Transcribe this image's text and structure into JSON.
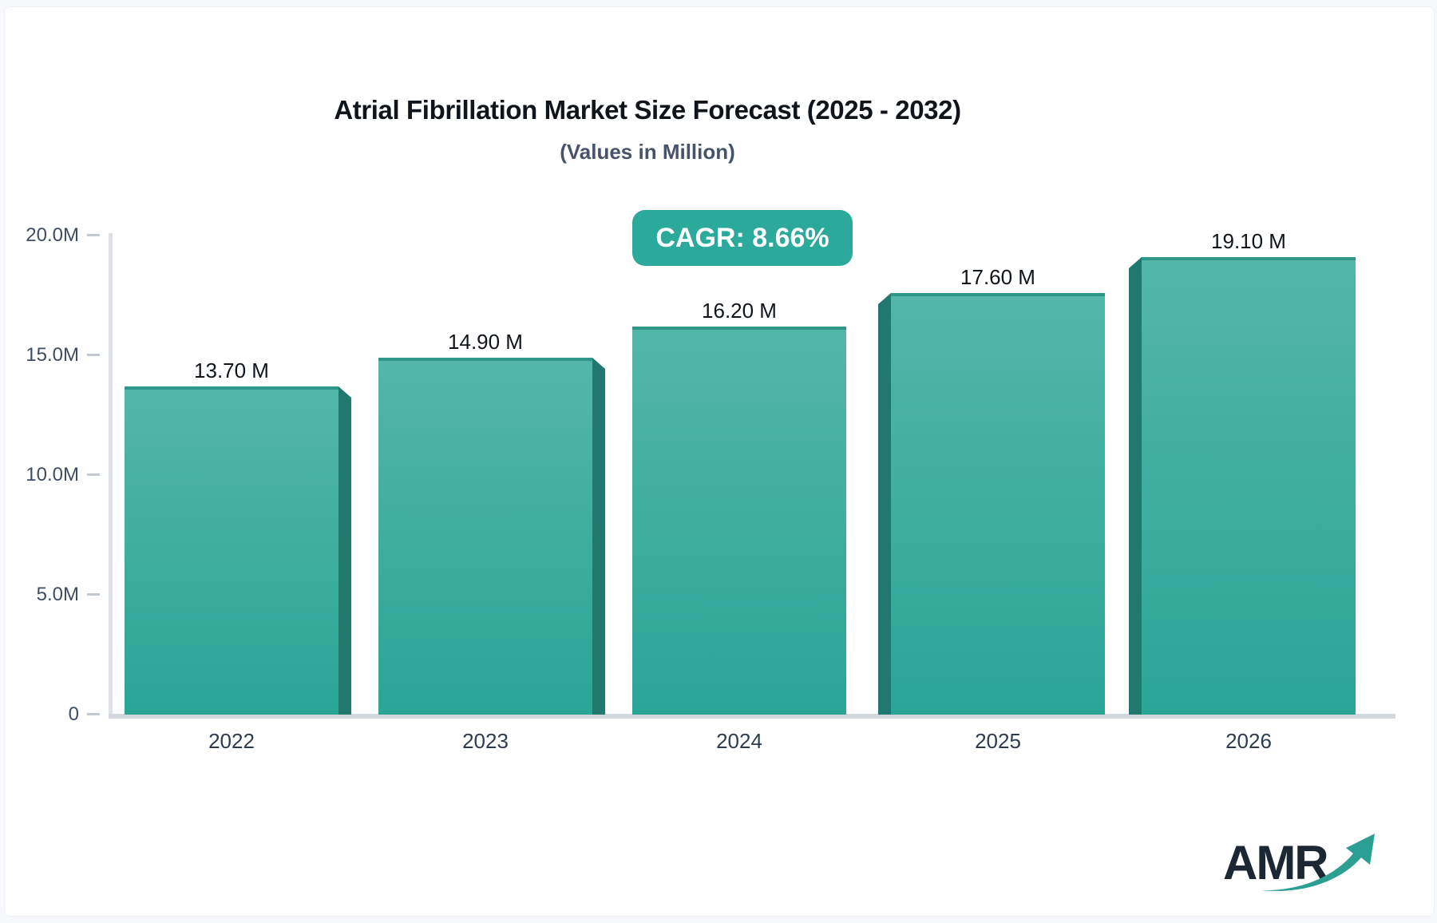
{
  "page": {
    "background": "#f7f8fb",
    "card_background": "#ffffff"
  },
  "header": {
    "title": "Atrial Fibrillation Market Size Forecast (2025 - 2032)",
    "subtitle": "(Values in Million)",
    "cagr_badge": "CAGR: 8.66%"
  },
  "chart_data": {
    "type": "bar",
    "title": "Atrial Fibrillation Market Size Forecast (2025 - 2032)",
    "subtitle": "(Values in Million)",
    "unit": "Million",
    "cagr_percent": 8.66,
    "categories": [
      "2022",
      "2023",
      "2024",
      "2025",
      "2026"
    ],
    "values": [
      13.7,
      14.9,
      16.2,
      17.6,
      19.1
    ],
    "value_labels": [
      "13.70 M",
      "14.90 M",
      "16.20 M",
      "17.60 M",
      "19.10 M"
    ],
    "ylim": [
      0,
      20
    ],
    "yticks": {
      "values": [
        0,
        5,
        10,
        15,
        20
      ],
      "labels": [
        "0",
        "5.0M",
        "10.0M",
        "15.0M",
        "20.0M"
      ]
    },
    "legend": "none",
    "grid": "off",
    "bar_style": "3d-beveled"
  },
  "logo": {
    "text": "AMR"
  },
  "colors": {
    "page_bg": "#f7f8fb",
    "card_bg": "#ffffff",
    "bar_top": "#53b6a9",
    "bar_bottom": "#2aa596",
    "bar_edge_top": "#2f968a",
    "bar_bevel": "#20786e",
    "badge_bg": "#2ba99b",
    "badge_text": "#ffffff",
    "axis_line": "#dee1e6",
    "baseline": "#d3d7de",
    "tick_text": "#3f4d63",
    "category_text": "#2e3c50",
    "value_text": "#10151c",
    "title_text": "#10151c",
    "subtitle_text": "#46536a",
    "logo_text": "#1c2733",
    "logo_arrow": "#2c9f93"
  }
}
